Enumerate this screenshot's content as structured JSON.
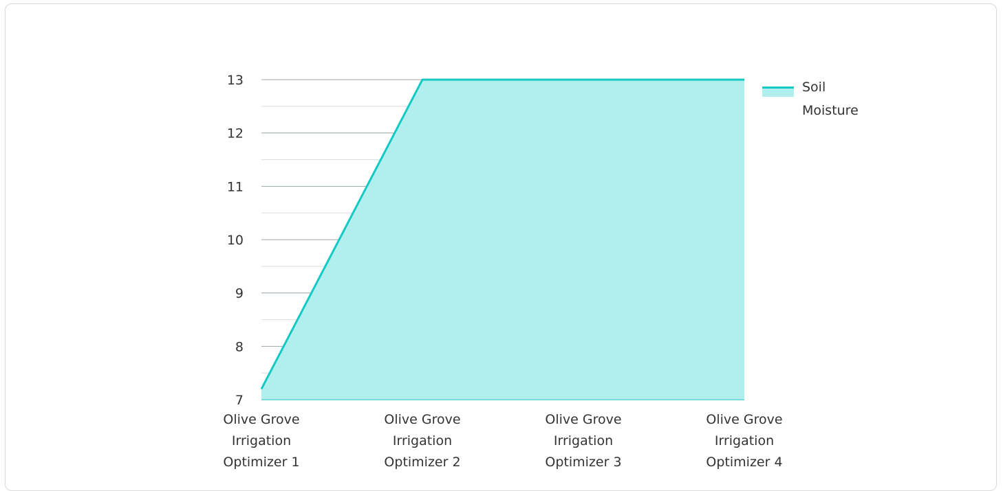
{
  "chart_data": {
    "type": "area",
    "categories": [
      [
        "Olive Grove",
        "Irrigation",
        "Optimizer 1"
      ],
      [
        "Olive Grove",
        "Irrigation",
        "Optimizer 2"
      ],
      [
        "Olive Grove",
        "Irrigation",
        "Optimizer 3"
      ],
      [
        "Olive Grove",
        "Irrigation",
        "Optimizer 4"
      ]
    ],
    "series": [
      {
        "name": "Soil Moisture",
        "values": [
          7.2,
          13,
          13,
          13
        ]
      }
    ],
    "legend_lines": [
      "Soil",
      "Moisture"
    ],
    "ylim": [
      7,
      13
    ],
    "yticks": [
      7,
      8,
      9,
      10,
      11,
      12,
      13
    ],
    "minor_grid": true,
    "legend_position": "right",
    "colors": {
      "line": "#14c8c4",
      "fill": "#b1efee",
      "major_grid": "#9aa7a6",
      "minor_grid": "#dcdcdc",
      "axis": "#7fd9d6"
    }
  }
}
